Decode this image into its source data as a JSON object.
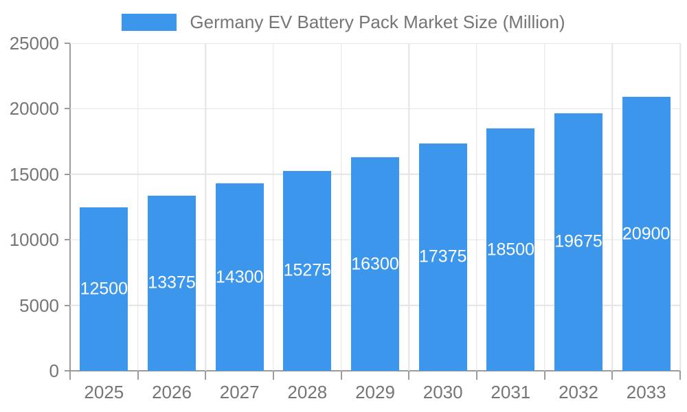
{
  "legend": {
    "label": "Germany EV Battery Pack Market Size (Million)"
  },
  "chart_data": {
    "type": "bar",
    "title": "Germany EV Battery Pack Market Size (Million)",
    "categories": [
      "2025",
      "2026",
      "2027",
      "2028",
      "2029",
      "2030",
      "2031",
      "2032",
      "2033"
    ],
    "values": [
      12500,
      13375,
      14300,
      15275,
      16300,
      17375,
      18500,
      19675,
      20900
    ],
    "series": [
      {
        "name": "Germany EV Battery Pack Market Size (Million)",
        "values": [
          12500,
          13375,
          14300,
          15275,
          16300,
          17375,
          18500,
          19675,
          20900
        ]
      }
    ],
    "xlabel": "",
    "ylabel": "",
    "ylim": [
      0,
      25000
    ],
    "yticks": [
      0,
      5000,
      10000,
      15000,
      20000,
      25000
    ],
    "grid": true,
    "bar_labels_visible": true,
    "legend_position": "top",
    "colors": {
      "bar": "#3b96ec",
      "bar_label": "#ffffff",
      "axis_text": "#757575",
      "axis_line": "#9b9b9b",
      "gridline": "#e4e4e4",
      "background": "#ffffff"
    }
  }
}
